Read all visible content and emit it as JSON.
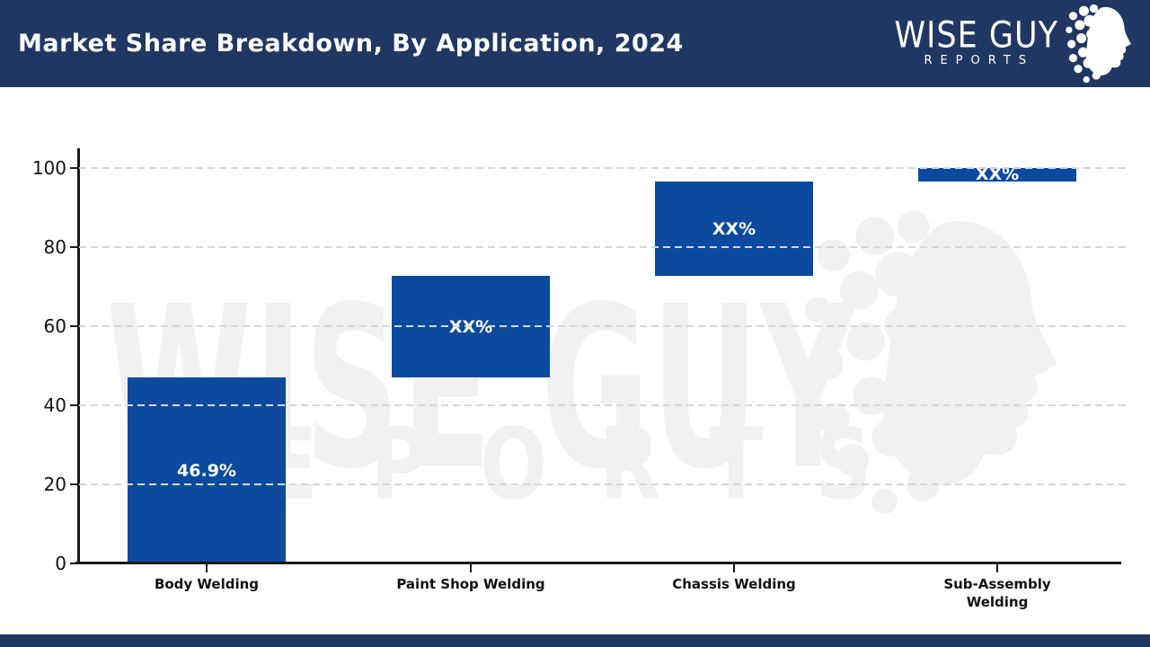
{
  "header": {
    "title": "Market Share Breakdown, By Application, 2024",
    "bg_color": "#213763",
    "logo": {
      "line1": "WISE GUY",
      "line2": "REPORTS"
    }
  },
  "watermark": {
    "line1": "WISE GUY",
    "line2": "REPORTS"
  },
  "footer": {
    "bg_color": "#213763"
  },
  "chart_data": {
    "type": "bar",
    "subtype": "waterfall",
    "title": "Market Share Breakdown, By Application, 2024",
    "categories": [
      "Body Welding",
      "Paint Shop Welding",
      "Chassis Welding",
      "Sub-Assembly Welding"
    ],
    "segments": [
      {
        "category": "Body Welding",
        "start": 0,
        "end": 46.9,
        "label": "46.9%"
      },
      {
        "category": "Paint Shop Welding",
        "start": 46.9,
        "end": 72.7,
        "label": "XX%"
      },
      {
        "category": "Chassis Welding",
        "start": 72.7,
        "end": 96.4,
        "label": "XX%"
      },
      {
        "category": "Sub-Assembly Welding",
        "start": 96.4,
        "end": 100,
        "label": "XX%"
      }
    ],
    "ylabel": "",
    "xlabel": "",
    "ylim": [
      0,
      100
    ],
    "yticks": [
      0,
      20,
      40,
      60,
      80,
      100
    ],
    "grid": "horizontal-dashed-over-bars",
    "legend": "none",
    "bar_color": "#0b4a9f",
    "bar_label_color": "#ffffff",
    "axis_color": "#1a1a1a",
    "grid_color": "#d7d7d7"
  }
}
